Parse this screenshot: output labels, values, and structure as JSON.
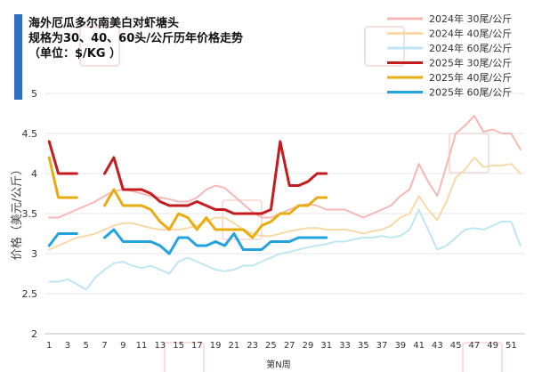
{
  "chart_data": {
    "type": "line",
    "title": "海外厄瓜多尔南美白对虾塘头\n规格为30、40、60头/公斤历年价格走势\n（单位：$/KG  ）",
    "xlabel": "第N周",
    "ylabel": "价格（美元/公斤）",
    "ylim": [
      2,
      5
    ],
    "yticks": [
      2,
      2.5,
      3,
      3.5,
      4,
      4.5,
      5
    ],
    "xlim": [
      0.5,
      52.5
    ],
    "xticks": [
      1,
      3,
      5,
      7,
      9,
      11,
      13,
      15,
      17,
      19,
      21,
      23,
      25,
      27,
      29,
      31,
      33,
      35,
      37,
      39,
      41,
      43,
      45,
      47,
      49,
      51
    ],
    "grid": "horizontal",
    "legend_position": "top-right",
    "colors": {
      "s2024_30": "#f6b8b4",
      "s2024_40": "#f9d9a5",
      "s2024_60": "#bfe6f3",
      "s2025_30": "#c41b1f",
      "s2025_40": "#e9ad12",
      "s2025_60": "#23a3dd",
      "accent_bar": "#2e6fc1"
    },
    "series": [
      {
        "name": "2024年  30尾/公斤",
        "color": "#f6b8b4",
        "width": 2,
        "x": [
          1,
          2,
          3,
          4,
          5,
          6,
          7,
          8,
          9,
          10,
          11,
          12,
          13,
          14,
          15,
          16,
          17,
          18,
          19,
          20,
          21,
          22,
          23,
          24,
          25,
          26,
          27,
          28,
          29,
          30,
          31,
          32,
          33,
          34,
          35,
          36,
          37,
          38,
          39,
          40,
          41,
          42,
          43,
          44,
          45,
          46,
          47,
          48,
          49,
          50,
          51,
          52
        ],
        "y": [
          3.45,
          3.45,
          3.5,
          3.55,
          3.6,
          3.65,
          3.72,
          3.78,
          3.8,
          3.78,
          3.75,
          3.72,
          3.7,
          3.68,
          3.65,
          3.65,
          3.7,
          3.8,
          3.85,
          3.82,
          3.72,
          3.62,
          3.52,
          3.45,
          3.45,
          3.5,
          3.55,
          3.6,
          3.62,
          3.6,
          3.55,
          3.55,
          3.55,
          3.5,
          3.45,
          3.5,
          3.55,
          3.6,
          3.72,
          3.8,
          4.12,
          3.9,
          3.72,
          4.1,
          4.5,
          4.6,
          4.72,
          4.52,
          4.55,
          4.5,
          4.5,
          4.3
        ]
      },
      {
        "name": "2024年  40尾/公斤",
        "color": "#f9d9a5",
        "width": 2,
        "x": [
          1,
          2,
          3,
          4,
          5,
          6,
          7,
          8,
          9,
          10,
          11,
          12,
          13,
          14,
          15,
          16,
          17,
          18,
          19,
          20,
          21,
          22,
          23,
          24,
          25,
          26,
          27,
          28,
          29,
          30,
          31,
          32,
          33,
          34,
          35,
          36,
          37,
          38,
          39,
          40,
          41,
          42,
          43,
          44,
          45,
          46,
          47,
          48,
          49,
          50,
          51,
          52
        ],
        "y": [
          3.05,
          3.1,
          3.15,
          3.2,
          3.22,
          3.25,
          3.3,
          3.35,
          3.38,
          3.38,
          3.35,
          3.32,
          3.3,
          3.3,
          3.3,
          3.32,
          3.35,
          3.4,
          3.45,
          3.45,
          3.38,
          3.3,
          3.25,
          3.22,
          3.22,
          3.25,
          3.28,
          3.3,
          3.32,
          3.32,
          3.3,
          3.3,
          3.3,
          3.28,
          3.25,
          3.28,
          3.3,
          3.35,
          3.45,
          3.5,
          3.72,
          3.55,
          3.42,
          3.65,
          3.95,
          4.05,
          4.2,
          4.08,
          4.1,
          4.1,
          4.12,
          4.0
        ]
      },
      {
        "name": "2024年  60尾/公斤",
        "color": "#bfe6f3",
        "width": 2,
        "x": [
          1,
          2,
          3,
          4,
          5,
          6,
          7,
          8,
          9,
          10,
          11,
          12,
          13,
          14,
          15,
          16,
          17,
          18,
          19,
          20,
          21,
          22,
          23,
          24,
          25,
          26,
          27,
          28,
          29,
          30,
          31,
          32,
          33,
          34,
          35,
          36,
          37,
          38,
          39,
          40,
          41,
          42,
          43,
          44,
          45,
          46,
          47,
          48,
          49,
          50,
          51,
          52
        ],
        "y": [
          2.65,
          2.65,
          2.68,
          2.62,
          2.55,
          2.7,
          2.8,
          2.88,
          2.9,
          2.85,
          2.82,
          2.85,
          2.8,
          2.75,
          2.9,
          2.95,
          2.9,
          2.85,
          2.8,
          2.78,
          2.8,
          2.85,
          2.85,
          2.9,
          2.95,
          3.0,
          3.02,
          3.05,
          3.08,
          3.1,
          3.12,
          3.15,
          3.15,
          3.18,
          3.2,
          3.2,
          3.22,
          3.2,
          3.22,
          3.3,
          3.55,
          3.3,
          3.05,
          3.1,
          3.2,
          3.3,
          3.32,
          3.3,
          3.35,
          3.4,
          3.4,
          3.1
        ]
      },
      {
        "name": "2025年  30尾/公斤",
        "color": "#c41b1f",
        "width": 3,
        "x": [
          1,
          2,
          3,
          4,
          null,
          7,
          8,
          9,
          10,
          11,
          12,
          13,
          14,
          15,
          16,
          17,
          18,
          19,
          20,
          21,
          22,
          23,
          24,
          25,
          26,
          27,
          28,
          29,
          30,
          31
        ],
        "y": [
          4.4,
          4.0,
          4.0,
          4.0,
          null,
          4.0,
          4.2,
          3.8,
          3.8,
          3.8,
          3.75,
          3.65,
          3.6,
          3.6,
          3.6,
          3.65,
          3.6,
          3.55,
          3.55,
          3.5,
          3.5,
          3.5,
          3.5,
          3.55,
          4.4,
          3.85,
          3.85,
          3.9,
          4.0,
          4.0
        ]
      },
      {
        "name": "2025年  40尾/公斤",
        "color": "#e9ad12",
        "width": 3,
        "x": [
          1,
          2,
          3,
          4,
          null,
          7,
          8,
          9,
          10,
          11,
          12,
          13,
          14,
          15,
          16,
          17,
          18,
          19,
          20,
          21,
          22,
          23,
          24,
          25,
          26,
          27,
          28,
          29,
          30,
          31
        ],
        "y": [
          4.2,
          3.7,
          3.7,
          3.7,
          null,
          3.6,
          3.8,
          3.6,
          3.6,
          3.6,
          3.55,
          3.4,
          3.3,
          3.5,
          3.45,
          3.3,
          3.45,
          3.3,
          3.3,
          3.3,
          3.3,
          3.2,
          3.35,
          3.4,
          3.5,
          3.5,
          3.6,
          3.6,
          3.7,
          3.7
        ]
      },
      {
        "name": "2025年  60尾/公斤",
        "color": "#23a3dd",
        "width": 3,
        "x": [
          1,
          2,
          3,
          4,
          null,
          7,
          8,
          9,
          10,
          11,
          12,
          13,
          14,
          15,
          16,
          17,
          18,
          19,
          20,
          21,
          22,
          23,
          24,
          25,
          26,
          27,
          28,
          29,
          30,
          31
        ],
        "y": [
          3.1,
          3.25,
          3.25,
          3.25,
          null,
          3.2,
          3.3,
          3.15,
          3.15,
          3.15,
          3.15,
          3.1,
          3.0,
          3.2,
          3.2,
          3.1,
          3.1,
          3.15,
          3.1,
          3.25,
          3.05,
          3.05,
          3.05,
          3.15,
          3.15,
          3.15,
          3.2,
          3.2,
          3.2,
          3.2
        ]
      }
    ]
  }
}
